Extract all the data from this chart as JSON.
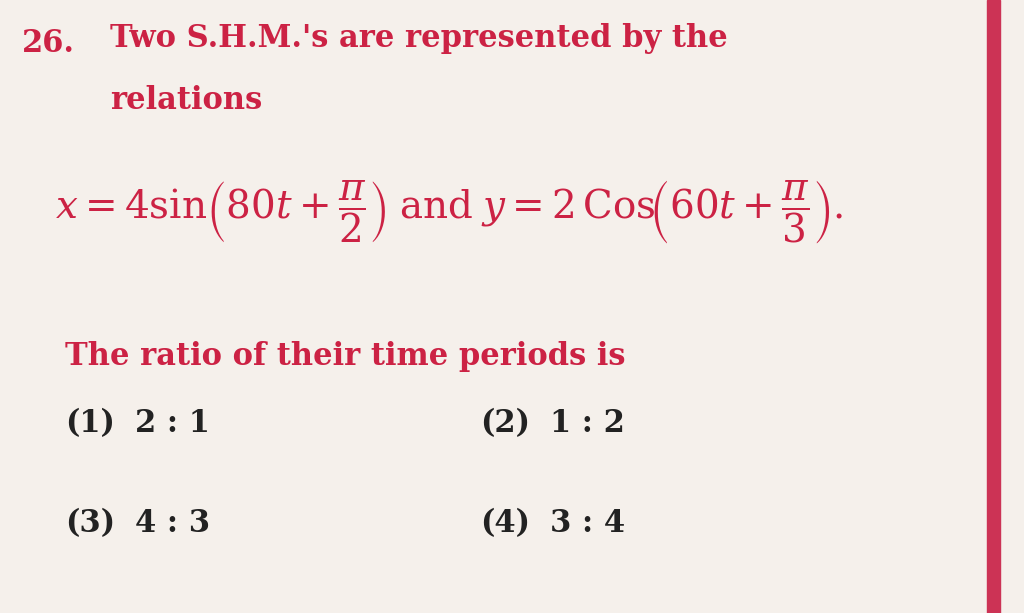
{
  "background_color": "#f5f0eb",
  "right_bar_color": "#cc3355",
  "text_color_black": "#222222",
  "text_color_red": "#cc2244",
  "question_number": "26.",
  "line1_part1": "Two S.H.M.'s are represented by the",
  "line2": "relations",
  "question_text": "The ratio of their time periods is",
  "options": [
    {
      "num": "(1)",
      "val": "2 : 1"
    },
    {
      "num": "(2)",
      "val": "1 : 2"
    },
    {
      "num": "(3)",
      "val": "4 : 3"
    },
    {
      "num": "(4)",
      "val": "3 : 4"
    }
  ],
  "figsize": [
    10.24,
    6.13
  ],
  "dpi": 100
}
